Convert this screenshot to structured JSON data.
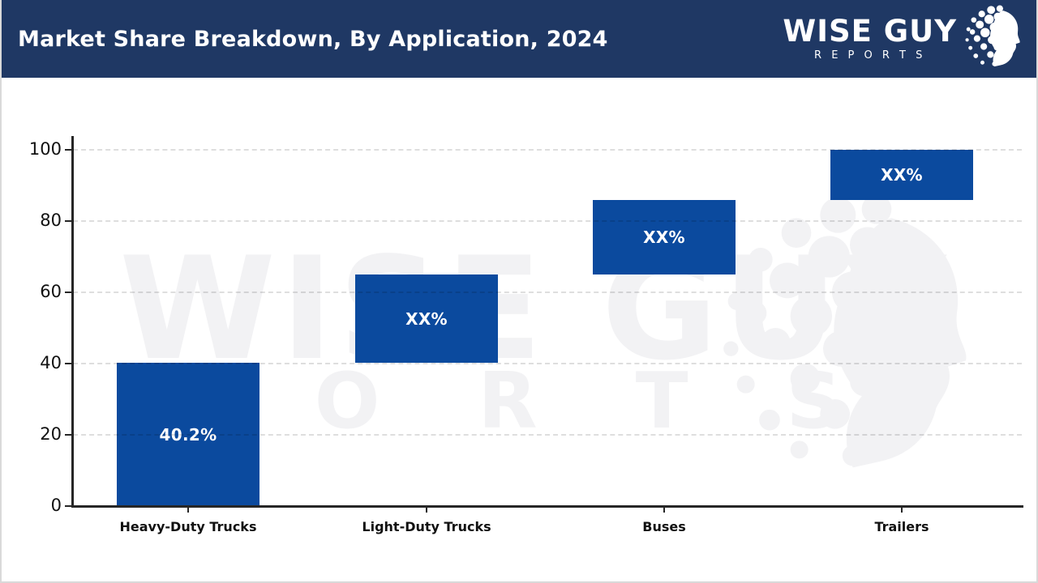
{
  "header": {
    "title": "Market Share Breakdown, By Application, 2024",
    "logo": {
      "line1": "WISE GUY",
      "line2": "R E P O R T S"
    }
  },
  "watermark": {
    "line1": "WISE GUY",
    "line2": "P O R T S"
  },
  "chart_data": {
    "type": "bar",
    "subtype": "waterfall",
    "title": "Market Share Breakdown, By Application, 2024",
    "categories": [
      "Heavy-Duty Trucks",
      "Light-Duty Trucks",
      "Buses",
      "Trailers"
    ],
    "segments": [
      {
        "category": "Heavy-Duty Trucks",
        "start": 0,
        "end": 40.2,
        "label": "40.2%"
      },
      {
        "category": "Light-Duty Trucks",
        "start": 40.2,
        "end": 65,
        "label": "XX%"
      },
      {
        "category": "Buses",
        "start": 65,
        "end": 86,
        "label": "XX%"
      },
      {
        "category": "Trailers",
        "start": 86,
        "end": 100,
        "label": "XX%"
      }
    ],
    "yticks": [
      0,
      20,
      40,
      60,
      80,
      100
    ],
    "ylim": [
      0,
      105
    ],
    "xlabel": "",
    "ylabel": "",
    "grid": "dashed-horizontal",
    "legend": "none"
  },
  "colors": {
    "header_bg": "#1f3864",
    "bar": "#0b4a9e",
    "bar_label": "#ffffff",
    "axis": "#262626",
    "grid": "#d9d9d9",
    "watermark": "#f2f2f4"
  }
}
